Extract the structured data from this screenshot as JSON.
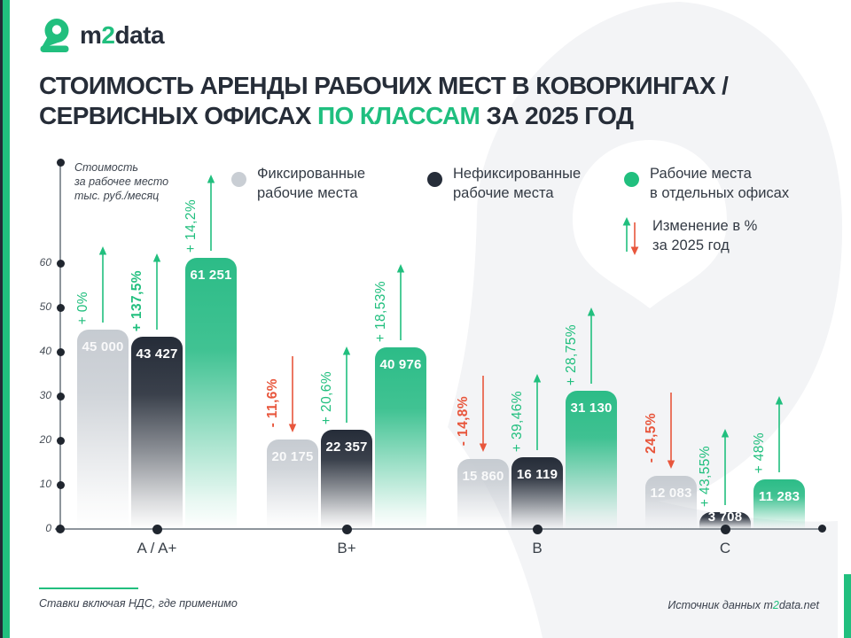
{
  "colors": {
    "accent": "#21bf7e",
    "dark_text": "#262d38",
    "red": "#e8563c",
    "series_fixed": "#c9ced4",
    "series_flex": "#262d39",
    "series_office": "#21bf7e",
    "watermark_gray": "#f3f4f6",
    "axis_gray": "#8e959c"
  },
  "logo": {
    "pre": "m",
    "green": "2",
    "post": "data"
  },
  "title": {
    "line1": "СТОИМОСТЬ АРЕНДЫ РАБОЧИХ МЕСТ В КОВОРКИНГАХ /",
    "line2_pre": "СЕРВИСНЫХ ОФИСАХ ",
    "line2_highlight": "ПО КЛАССАМ",
    "line2_post": " ЗА 2025 ГОД"
  },
  "y_axis_caption": {
    "line1": "Стоимость",
    "line2": "за рабочее место",
    "line3": "тыс. руб./месяц"
  },
  "legend": {
    "items": [
      {
        "label_line1": "Фиксированные",
        "label_line2": "рабочие места",
        "color": "#c9ced4"
      },
      {
        "label_line1": "Нефиксированные",
        "label_line2": "рабочие места",
        "color": "#262d39"
      },
      {
        "label_line1": "Рабочие места",
        "label_line2": "в отдельных офисах",
        "color": "#21bf7e"
      }
    ],
    "change_item": {
      "label_line1": "Изменение в %",
      "label_line2": "за 2025 год"
    }
  },
  "chart_data": {
    "type": "bar",
    "title": "Стоимость аренды рабочих мест в коворкингах / сервисных офисах по классам за 2025 год",
    "ylabel": "Стоимость за рабочее место тыс. руб./месяц",
    "ylim": [
      0,
      60
    ],
    "yticks": [
      60,
      50,
      40,
      30,
      20,
      10,
      0
    ],
    "grid": false,
    "legend_position": "top",
    "categories": [
      "A / A+",
      "B+",
      "B",
      "C"
    ],
    "series": [
      {
        "name": "Фиксированные рабочие места",
        "color": "#c9ced4",
        "values": [
          45000,
          20175,
          15860,
          12083
        ],
        "value_labels": [
          "45 000",
          "20 175",
          "15 860",
          "12 083"
        ],
        "changes": [
          "+ 0%",
          "- 11,6%",
          "- 14,8%",
          "- 24,5%"
        ]
      },
      {
        "name": "Нефиксированные рабочие места",
        "color": "#262d39",
        "values": [
          43427,
          22357,
          16119,
          3708
        ],
        "value_labels": [
          "43 427",
          "22 357",
          "16 119",
          "3 708"
        ],
        "changes": [
          "+ 137,5%",
          "+ 20,6%",
          "+ 39,46%",
          "+ 43,55%"
        ]
      },
      {
        "name": "Рабочие места в отдельных офисах",
        "color": "#21bf7e",
        "values": [
          61251,
          40976,
          31130,
          11283
        ],
        "value_labels": [
          "61 251",
          "40 976",
          "31 130",
          "11 283"
        ],
        "changes": [
          "+ 14,2%",
          "+ 18,53%",
          "+ 28,75%",
          "+ 48%"
        ]
      }
    ],
    "bold_changes": [
      "+ 137,5%",
      "- 11,6%"
    ]
  },
  "footer": {
    "note": "Ставки включая НДС, где применимо",
    "source_prefix": "Источник данных m",
    "source_green": "2",
    "source_suffix": "data.net"
  }
}
